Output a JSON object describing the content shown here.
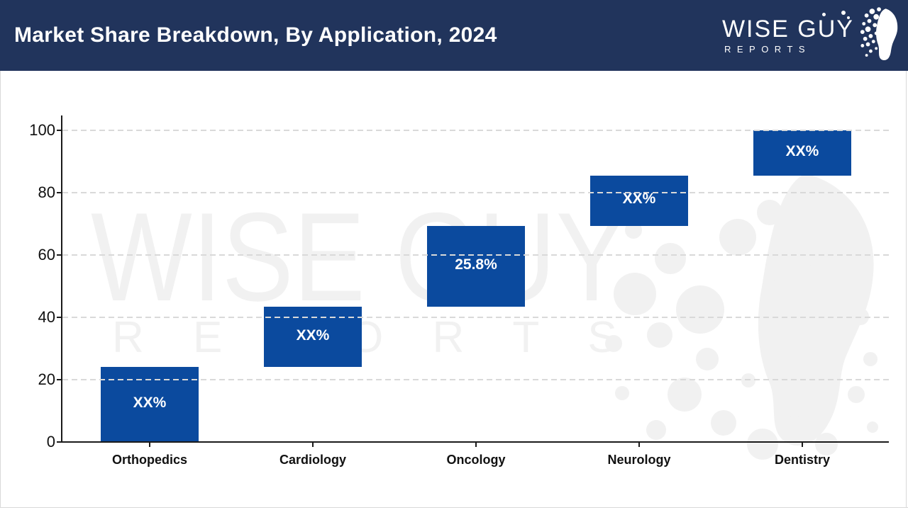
{
  "header": {
    "title": "Market Share Breakdown, By Application, 2024",
    "logo": {
      "primary": "WISE GUY",
      "secondary": "REPORTS"
    }
  },
  "watermark": {
    "primary": "WISE GUY",
    "secondary": "R E P O R T S"
  },
  "colors": {
    "header_bg": "#21345c",
    "bar": "#0b4a9e",
    "bar_label": "#ffffff",
    "grid": "#d9d9d9",
    "axis": "#1a1a1a",
    "tick_label": "#111111",
    "watermark": "#f1f1f1",
    "border": "#d9d9d9"
  },
  "chart_data": {
    "type": "bar",
    "subtype": "waterfall",
    "title": "Market Share Breakdown, By Application, 2024",
    "categories": [
      "Orthopedics",
      "Cardiology",
      "Oncology",
      "Neurology",
      "Dentistry"
    ],
    "segments": [
      {
        "category": "Orthopedics",
        "start": 0,
        "end": 24,
        "label": "XX%"
      },
      {
        "category": "Cardiology",
        "start": 24,
        "end": 43.5,
        "label": "XX%"
      },
      {
        "category": "Oncology",
        "start": 43.5,
        "end": 69.3,
        "label": "25.8%"
      },
      {
        "category": "Neurology",
        "start": 69.3,
        "end": 85.5,
        "label": "XX%"
      },
      {
        "category": "Dentistry",
        "start": 85.5,
        "end": 100,
        "label": "XX%"
      }
    ],
    "yticks": [
      0,
      20,
      40,
      60,
      80,
      100
    ],
    "ylim": [
      0,
      105
    ],
    "xlabel": "",
    "ylabel": "",
    "grid": "horizontal dashed, drawn over bars",
    "legend": "none"
  }
}
